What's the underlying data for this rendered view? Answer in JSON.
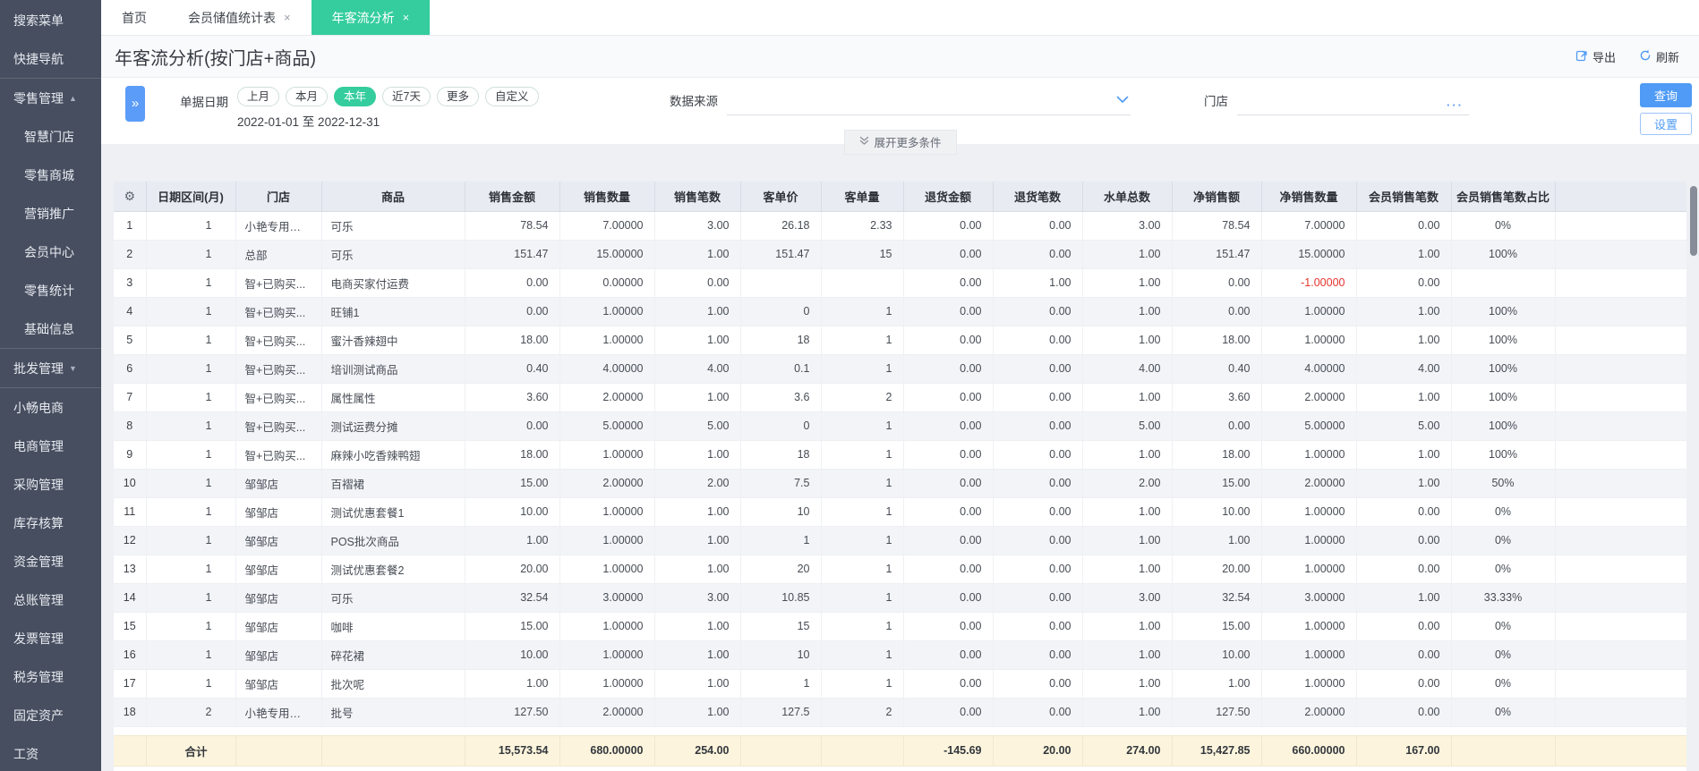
{
  "colors": {
    "accent_green": "#35cd9d",
    "accent_blue": "#4f9bf5",
    "negative_red": "#e5342e",
    "sidebar_bg": "#474e5f",
    "table_header_bg": "#e8ebf1",
    "total_row_bg": "#fcf4dc"
  },
  "sidebar": {
    "items": [
      {
        "label": "搜索菜单"
      },
      {
        "label": "快捷导航"
      },
      {
        "label": "零售管理",
        "arrow": "up",
        "divider_before": true
      },
      {
        "label": "智慧门店",
        "indent": true
      },
      {
        "label": "零售商城",
        "indent": true
      },
      {
        "label": "营销推广",
        "indent": true
      },
      {
        "label": "会员中心",
        "indent": true
      },
      {
        "label": "零售统计",
        "indent": true
      },
      {
        "label": "基础信息",
        "indent": true
      },
      {
        "label": "批发管理",
        "arrow": "down",
        "divider_before": true
      },
      {
        "label": "小畅电商",
        "divider_before": true
      },
      {
        "label": "电商管理"
      },
      {
        "label": "采购管理"
      },
      {
        "label": "库存核算"
      },
      {
        "label": "资金管理"
      },
      {
        "label": "总账管理"
      },
      {
        "label": "发票管理"
      },
      {
        "label": "税务管理"
      },
      {
        "label": "固定资产"
      },
      {
        "label": "工资"
      }
    ]
  },
  "tabs": [
    {
      "label": "首页",
      "closable": false,
      "active": false
    },
    {
      "label": "会员储值统计表",
      "closable": true,
      "active": false
    },
    {
      "label": "年客流分析",
      "closable": true,
      "active": true
    }
  ],
  "page": {
    "title": "年客流分析(按门店+商品)",
    "export_label": "导出",
    "refresh_label": "刷新"
  },
  "filters": {
    "collapse_glyph": "»",
    "date_label": "单据日期",
    "date_pills": [
      "上月",
      "本月",
      "本年",
      "近7天",
      "更多",
      "自定义"
    ],
    "date_pill_active_index": 2,
    "date_range": "2022-01-01 至 2022-12-31",
    "source_label": "数据来源",
    "store_label": "门店",
    "store_more_glyph": "···",
    "query_label": "查询",
    "settings_label": "设置",
    "expand_label": "展开更多条件"
  },
  "table": {
    "columns": [
      "日期区间(月)",
      "门店",
      "商品",
      "销售金额",
      "销售数量",
      "销售笔数",
      "客单价",
      "客单量",
      "退货金额",
      "退货笔数",
      "水单总数",
      "净销售额",
      "净销售数量",
      "会员销售笔数",
      "会员销售笔数占比"
    ],
    "rows": [
      [
        "1",
        "小艳专用门店",
        "可乐",
        "78.54",
        "7.00000",
        "3.00",
        "26.18",
        "2.33",
        "0.00",
        "0.00",
        "3.00",
        "78.54",
        "7.00000",
        "0.00",
        "0%"
      ],
      [
        "1",
        "总部",
        "可乐",
        "151.47",
        "15.00000",
        "1.00",
        "151.47",
        "15",
        "0.00",
        "0.00",
        "1.00",
        "151.47",
        "15.00000",
        "1.00",
        "100%"
      ],
      [
        "1",
        "智+已购买...",
        "电商买家付运费",
        "0.00",
        "0.00000",
        "0.00",
        "",
        "",
        "0.00",
        "1.00",
        "1.00",
        "0.00",
        "-1.00000",
        "0.00",
        ""
      ],
      [
        "1",
        "智+已购买...",
        "旺铺1",
        "0.00",
        "1.00000",
        "1.00",
        "0",
        "1",
        "0.00",
        "0.00",
        "1.00",
        "0.00",
        "1.00000",
        "1.00",
        "100%"
      ],
      [
        "1",
        "智+已购买...",
        "蜜汁香辣翅中",
        "18.00",
        "1.00000",
        "1.00",
        "18",
        "1",
        "0.00",
        "0.00",
        "1.00",
        "18.00",
        "1.00000",
        "1.00",
        "100%"
      ],
      [
        "1",
        "智+已购买...",
        "培训测试商品",
        "0.40",
        "4.00000",
        "4.00",
        "0.1",
        "1",
        "0.00",
        "0.00",
        "4.00",
        "0.40",
        "4.00000",
        "4.00",
        "100%"
      ],
      [
        "1",
        "智+已购买...",
        "属性属性",
        "3.60",
        "2.00000",
        "1.00",
        "3.6",
        "2",
        "0.00",
        "0.00",
        "1.00",
        "3.60",
        "2.00000",
        "1.00",
        "100%"
      ],
      [
        "1",
        "智+已购买...",
        "测试运费分摊",
        "0.00",
        "5.00000",
        "5.00",
        "0",
        "1",
        "0.00",
        "0.00",
        "5.00",
        "0.00",
        "5.00000",
        "5.00",
        "100%"
      ],
      [
        "1",
        "智+已购买...",
        "麻辣小吃香辣鸭翅",
        "18.00",
        "1.00000",
        "1.00",
        "18",
        "1",
        "0.00",
        "0.00",
        "1.00",
        "18.00",
        "1.00000",
        "1.00",
        "100%"
      ],
      [
        "1",
        "邹邹店",
        "百褶裙",
        "15.00",
        "2.00000",
        "2.00",
        "7.5",
        "1",
        "0.00",
        "0.00",
        "2.00",
        "15.00",
        "2.00000",
        "1.00",
        "50%"
      ],
      [
        "1",
        "邹邹店",
        "测试优惠套餐1",
        "10.00",
        "1.00000",
        "1.00",
        "10",
        "1",
        "0.00",
        "0.00",
        "1.00",
        "10.00",
        "1.00000",
        "0.00",
        "0%"
      ],
      [
        "1",
        "邹邹店",
        "POS批次商品",
        "1.00",
        "1.00000",
        "1.00",
        "1",
        "1",
        "0.00",
        "0.00",
        "1.00",
        "1.00",
        "1.00000",
        "0.00",
        "0%"
      ],
      [
        "1",
        "邹邹店",
        "测试优惠套餐2",
        "20.00",
        "1.00000",
        "1.00",
        "20",
        "1",
        "0.00",
        "0.00",
        "1.00",
        "20.00",
        "1.00000",
        "0.00",
        "0%"
      ],
      [
        "1",
        "邹邹店",
        "可乐",
        "32.54",
        "3.00000",
        "3.00",
        "10.85",
        "1",
        "0.00",
        "0.00",
        "3.00",
        "32.54",
        "3.00000",
        "1.00",
        "33.33%"
      ],
      [
        "1",
        "邹邹店",
        "咖啡",
        "15.00",
        "1.00000",
        "1.00",
        "15",
        "1",
        "0.00",
        "0.00",
        "1.00",
        "15.00",
        "1.00000",
        "0.00",
        "0%"
      ],
      [
        "1",
        "邹邹店",
        "碎花裙",
        "10.00",
        "1.00000",
        "1.00",
        "10",
        "1",
        "0.00",
        "0.00",
        "1.00",
        "10.00",
        "1.00000",
        "0.00",
        "0%"
      ],
      [
        "1",
        "邹邹店",
        "批次呢",
        "1.00",
        "1.00000",
        "1.00",
        "1",
        "1",
        "0.00",
        "0.00",
        "1.00",
        "1.00",
        "1.00000",
        "0.00",
        "0%"
      ],
      [
        "2",
        "小艳专用门店",
        "批号",
        "127.50",
        "2.00000",
        "1.00",
        "127.5",
        "2",
        "0.00",
        "0.00",
        "1.00",
        "127.50",
        "2.00000",
        "0.00",
        "0%"
      ]
    ],
    "total_row": [
      "合计",
      "",
      "",
      "15,573.54",
      "680.00000",
      "254.00",
      "",
      "",
      "-145.69",
      "20.00",
      "274.00",
      "15,427.85",
      "660.00000",
      "167.00",
      ""
    ]
  }
}
